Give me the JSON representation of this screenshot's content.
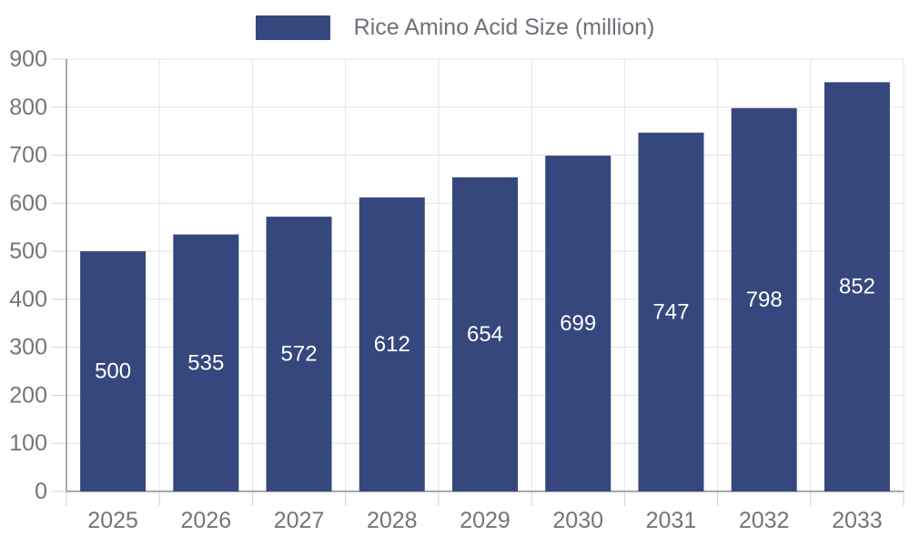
{
  "page": {
    "background": "#ffffff"
  },
  "legend": {
    "label": "Rice Amino Acid Size (million)"
  },
  "colors": {
    "bar": "#36477d",
    "bar_label": "#ffffff",
    "axis_label": "#757575",
    "legend_text": "#6e7079",
    "grid_line": "#e3e3e9",
    "tick_line": "#cfcfd6",
    "axis_line": "#a8a8ad"
  },
  "chart_data": {
    "type": "bar",
    "title": "Rice Amino Acid Size (million)",
    "categories": [
      "2025",
      "2026",
      "2027",
      "2028",
      "2029",
      "2030",
      "2031",
      "2032",
      "2033"
    ],
    "values": [
      500,
      535,
      572,
      612,
      654,
      699,
      747,
      798,
      852
    ],
    "xlabel": "",
    "ylabel": "",
    "ylim": [
      0,
      900
    ],
    "yticks": [
      0,
      100,
      200,
      300,
      400,
      500,
      600,
      700,
      800,
      900
    ],
    "grid": true,
    "legend_position": "top-center",
    "bar_label_position": "inside-center",
    "bar_label_font_size": 24,
    "axis_label_font_size": 25
  }
}
